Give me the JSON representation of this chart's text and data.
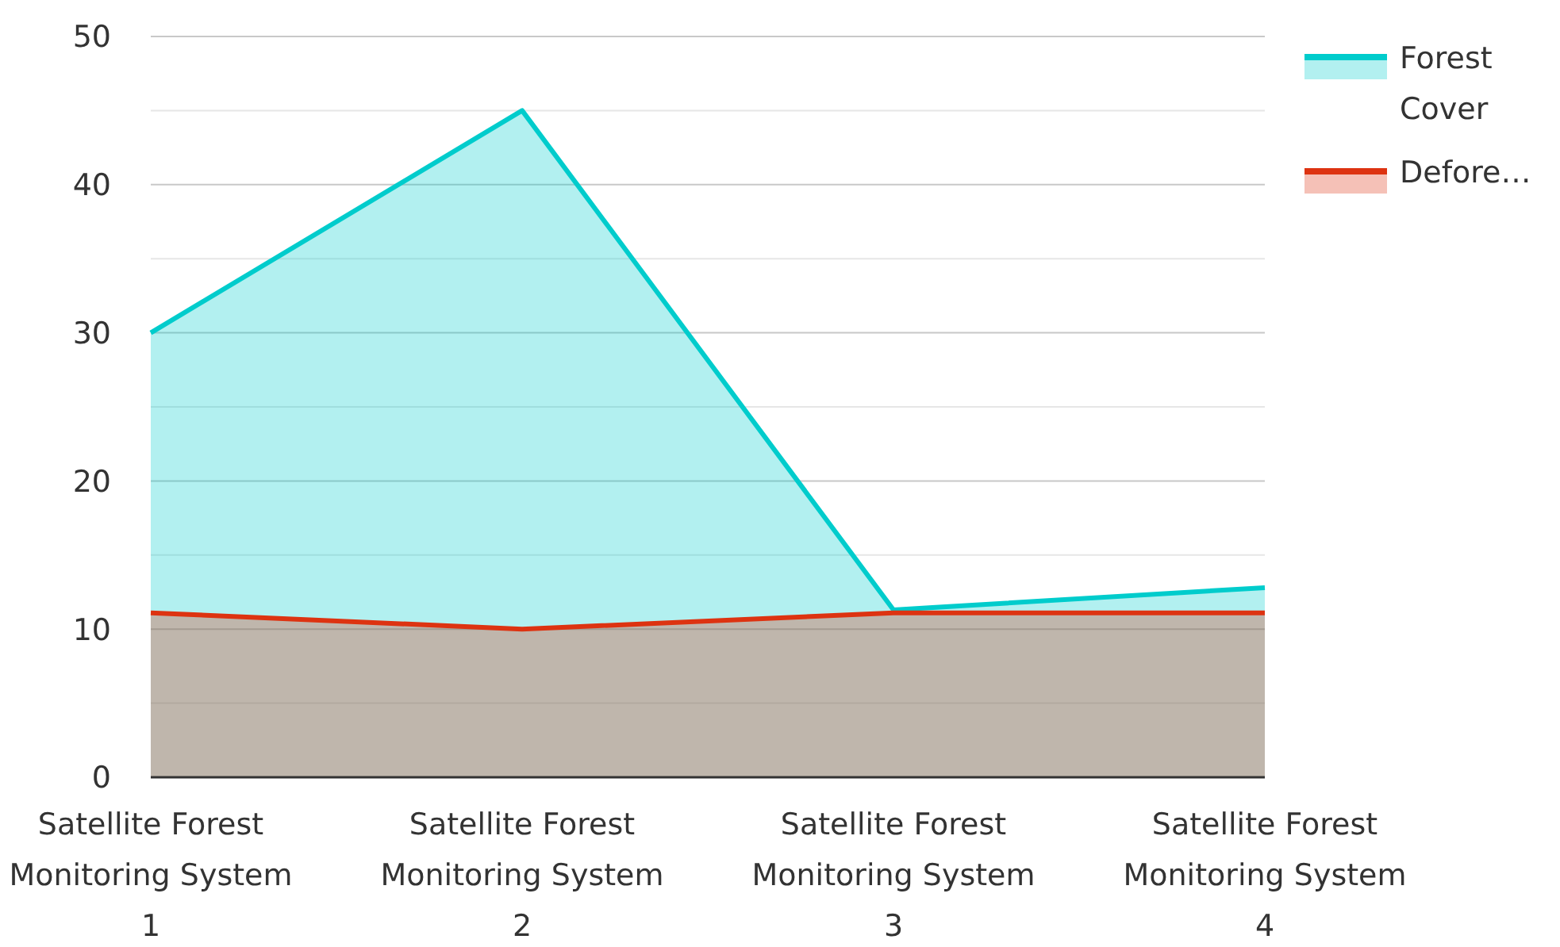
{
  "chart_data": {
    "type": "area",
    "categories": [
      "Satellite Forest Monitoring System 1",
      "Satellite Forest Monitoring System 2",
      "Satellite Forest Monitoring System 3",
      "Satellite Forest Monitoring System 4"
    ],
    "series": [
      {
        "name": "Forest Cover",
        "color": "#00cccc",
        "values": [
          30,
          45,
          11.3,
          12.8
        ]
      },
      {
        "name": "Defore…",
        "color": "#dd3311",
        "values": [
          11.1,
          10,
          11.1,
          11.1
        ]
      }
    ],
    "ylim": [
      0,
      50
    ],
    "yticks": [
      0,
      {
        "value": 5,
        "label": null
      },
      10,
      {
        "value": 15,
        "label": null
      },
      20,
      {
        "value": 25,
        "label": null
      },
      30,
      {
        "value": 35,
        "label": null
      },
      40,
      {
        "value": 45,
        "label": null
      },
      50
    ],
    "grid": "y",
    "legend": "top right"
  }
}
